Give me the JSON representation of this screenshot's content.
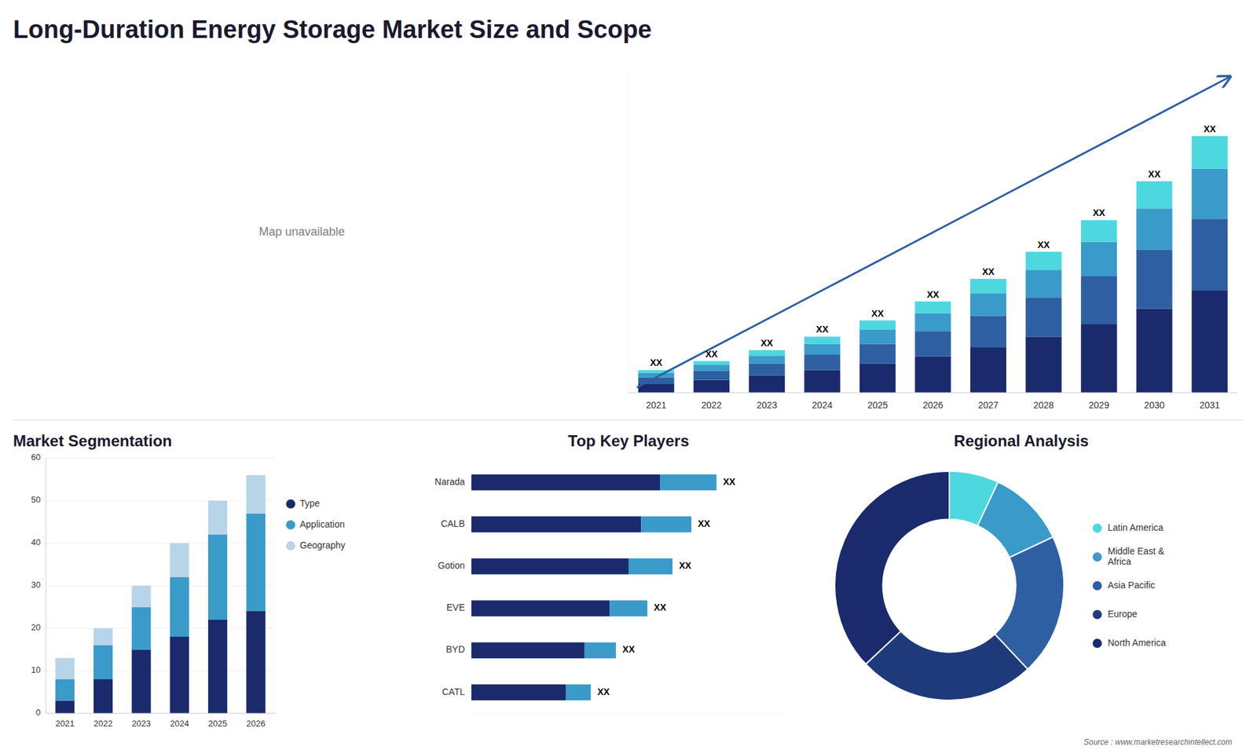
{
  "title": "Long-Duration Energy Storage Market Size and Scope",
  "annotations": [
    "Map unavailable",
    "Source : www.marketresearchintellect.com"
  ],
  "chart_data": [
    {
      "type": "bar",
      "stacked": true,
      "categories": [
        "2021",
        "2022",
        "2023",
        "2024",
        "2025",
        "2026",
        "2027",
        "2028",
        "2029",
        "2030",
        "2031"
      ],
      "series": [
        {
          "color": "#1a2a6c",
          "values": [
            1.0,
            1.4,
            1.9,
            2.5,
            3.2,
            4.0,
            5.0,
            6.2,
            7.6,
            9.3,
            11.3
          ]
        },
        {
          "color": "#2e5fa3",
          "values": [
            0.7,
            1.0,
            1.3,
            1.7,
            2.2,
            2.8,
            3.5,
            4.3,
            5.3,
            6.5,
            7.9
          ]
        },
        {
          "color": "#3a9ac9",
          "values": [
            0.5,
            0.7,
            0.9,
            1.2,
            1.6,
            2.0,
            2.5,
            3.1,
            3.8,
            4.6,
            5.6
          ]
        },
        {
          "color": "#4dd8e0",
          "values": [
            0.3,
            0.4,
            0.6,
            0.8,
            1.0,
            1.3,
            1.6,
            2.0,
            2.4,
            3.0,
            3.6
          ]
        }
      ],
      "ylim": [
        0,
        35.5
      ],
      "tick_labels": "x",
      "annotations": [
        "XX",
        "XX",
        "XX",
        "XX",
        "XX",
        "XX",
        "XX",
        "XX",
        "XX",
        "XX",
        "XX"
      ]
    },
    {
      "type": "bar",
      "stacked": true,
      "title": "Market Segmentation",
      "categories": [
        "2021",
        "2022",
        "2023",
        "2024",
        "2025",
        "2026"
      ],
      "series": [
        {
          "name": "Type",
          "color": "#1a2a6c",
          "values": [
            3,
            8,
            15,
            18,
            22,
            24
          ]
        },
        {
          "name": "Application",
          "color": "#3a9ac9",
          "values": [
            5,
            8,
            10,
            14,
            20,
            23
          ]
        },
        {
          "name": "Geography",
          "color": "#b8d4e8",
          "values": [
            5,
            4,
            5,
            8,
            8,
            9
          ]
        }
      ],
      "ylim": [
        0,
        60
      ],
      "yticks": [
        0,
        10,
        20,
        30,
        40,
        50,
        60
      ],
      "grid": true,
      "legend": "right"
    },
    {
      "type": "bar",
      "orientation": "horizontal",
      "stacked": true,
      "title": "Top Key Players",
      "categories": [
        "Narada",
        "CALB",
        "Gotion",
        "EVE",
        "BYD",
        "CATL"
      ],
      "series": [
        {
          "color": "#1a2a6c",
          "values": [
            0.6,
            0.54,
            0.5,
            0.44,
            0.36,
            0.3
          ]
        },
        {
          "color": "#3a9ac9",
          "values": [
            0.18,
            0.16,
            0.14,
            0.12,
            0.1,
            0.08
          ]
        }
      ],
      "xlim": [
        0,
        1.0
      ],
      "tick_labels": "y",
      "annotations": [
        "XX",
        "XX",
        "XX",
        "XX",
        "XX",
        "XX"
      ]
    },
    {
      "type": "pie",
      "title": "Regional Analysis",
      "categories": [
        "Latin America",
        "Middle East &\nAfrica",
        "Asia Pacific",
        "Europe",
        "North America"
      ],
      "values": [
        7,
        11,
        20,
        25,
        37
      ],
      "colors": [
        "#4dd8e0",
        "#3a9ac9",
        "#2e5fa3",
        "#1e3a7a",
        "#1a2a6c"
      ],
      "legend": "right"
    }
  ]
}
